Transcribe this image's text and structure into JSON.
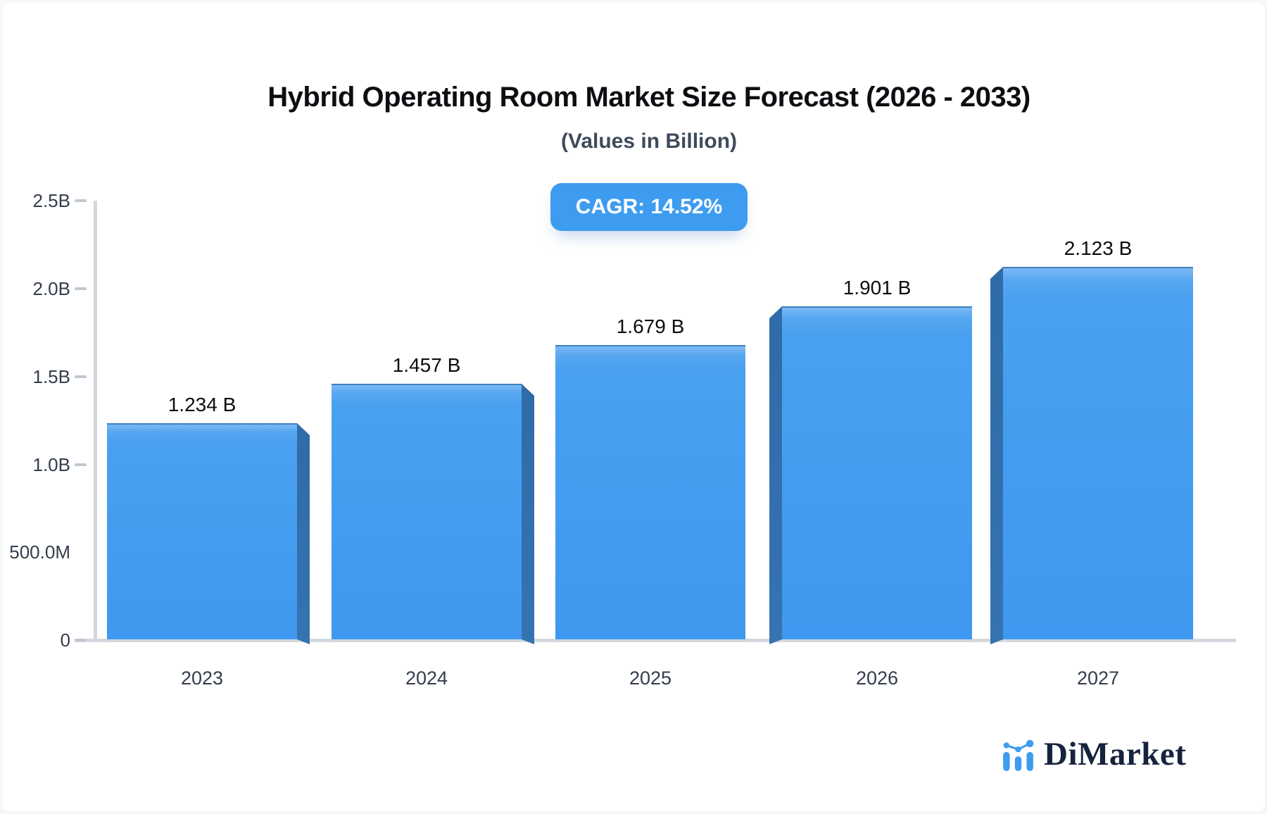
{
  "header": {
    "title": "Hybrid Operating Room Market Size Forecast (2026 - 2033)",
    "subtitle": "(Values in Billion)"
  },
  "badge": {
    "label": "CAGR: 14.52%",
    "bg_color": "#3e9cf0"
  },
  "chart_data": {
    "type": "bar",
    "categories": [
      "2023",
      "2024",
      "2025",
      "2026",
      "2027"
    ],
    "values": [
      1.234,
      1.457,
      1.679,
      1.901,
      2.123
    ],
    "value_labels": [
      "1.234 B",
      "1.457 B",
      "1.679 B",
      "1.901 B",
      "2.123 B"
    ],
    "title": "Hybrid Operating Room Market Size Forecast (2026 - 2033)",
    "subtitle": "(Values in Billion)",
    "xlabel": "",
    "ylabel": "",
    "ylim": [
      0,
      2.5
    ],
    "ytick_values": [
      2.5,
      2.0,
      1.5,
      1.0,
      0.5,
      0
    ],
    "ytick_labels": [
      "2.5B",
      "2.0B",
      "1.5B",
      "1.0B",
      "500.0M",
      "0"
    ],
    "ytick_has_dash": [
      true,
      true,
      true,
      true,
      false,
      true
    ],
    "grid": false,
    "legend": false,
    "bar_face_color": "#459ef0",
    "bar_side_color": "#3270ae",
    "axis_color": "#d4d8de",
    "cagr_annotation": "CAGR: 14.52%"
  },
  "logo": {
    "text": "DiMarket",
    "icon": "bar-chart-logo-icon",
    "text_color": "#16233d",
    "accent_color": "#3d9bf0"
  }
}
